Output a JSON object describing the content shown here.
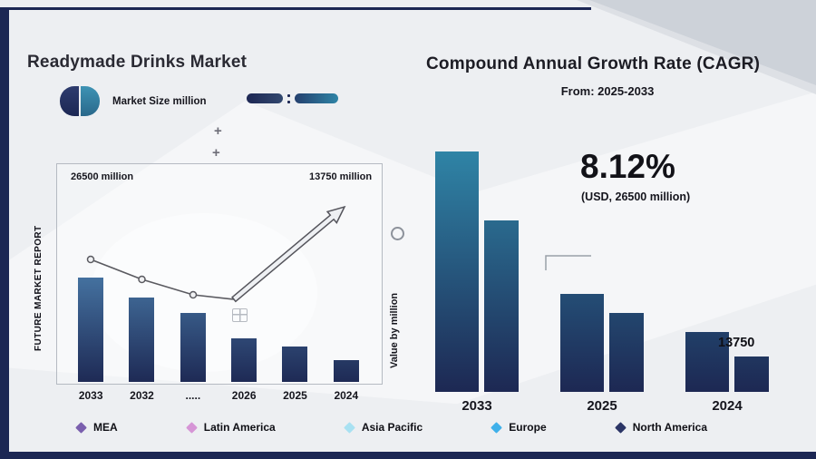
{
  "colors": {
    "navy": "#1c2754",
    "teal": "#2f84a6",
    "left_bar_top": "#44719f",
    "left_bar_bottom": "#1e2a55",
    "right_bar_bottom": "#1d2853",
    "background": "#edeff2"
  },
  "decor": {
    "plus": "+"
  },
  "left_chart": {
    "title": "Readymade Drinks Market",
    "legend_label": "Market Size million",
    "top_left_value": "26500 million",
    "top_right_value": "13750 million",
    "side_label": "FUTURE MARKET REPORT"
  },
  "right_chart": {
    "title": "Compound Annual Growth Rate (CAGR)",
    "subtitle": "From: 2025-2033",
    "cagr": "8.12%",
    "cagr_note": "(USD, 26500 million)",
    "ylabel": "Value by million",
    "bar_label": "13750"
  },
  "legend": {
    "items": [
      {
        "label": "MEA",
        "color": "#7a5fae"
      },
      {
        "label": "Latin America",
        "color": "#d695d6"
      },
      {
        "label": "Asia Pacific",
        "color": "#a8e1f2"
      },
      {
        "label": "Europe",
        "color": "#3fb0ea"
      },
      {
        "label": "North America",
        "color": "#2b3566"
      }
    ]
  },
  "chart_data": [
    {
      "type": "bar",
      "title": "Readymade Drinks Market",
      "legend": [
        "Market Size million"
      ],
      "categories": [
        "2033",
        "2032",
        ".....",
        "2026",
        "2025",
        "2024"
      ],
      "values": [
        26500,
        21500,
        17500,
        11000,
        9000,
        5500
      ],
      "ylabel": "FUTURE MARKET REPORT",
      "annotations": [
        "26500 million",
        "13750 million"
      ],
      "ylim": [
        0,
        26500
      ],
      "grid": false,
      "trend": "markers descend over 2033-2026 then arrow rises to top right"
    },
    {
      "type": "bar",
      "title": "Compound Annual Growth Rate (CAGR)",
      "subtitle": "From: 2025-2033",
      "categories": [
        "2033",
        "2025",
        "2024"
      ],
      "series": [
        {
          "name": "primary",
          "values": [
            26500,
            10800,
            6600
          ]
        },
        {
          "name": "secondary",
          "values": [
            18900,
            8700,
            3900
          ]
        }
      ],
      "ylabel": "Value by million",
      "annotations": [
        "8.12%",
        "(USD, 26500 million)",
        "13750"
      ],
      "ylim": [
        0,
        26500
      ],
      "grid": false,
      "legend_position": "none"
    }
  ]
}
